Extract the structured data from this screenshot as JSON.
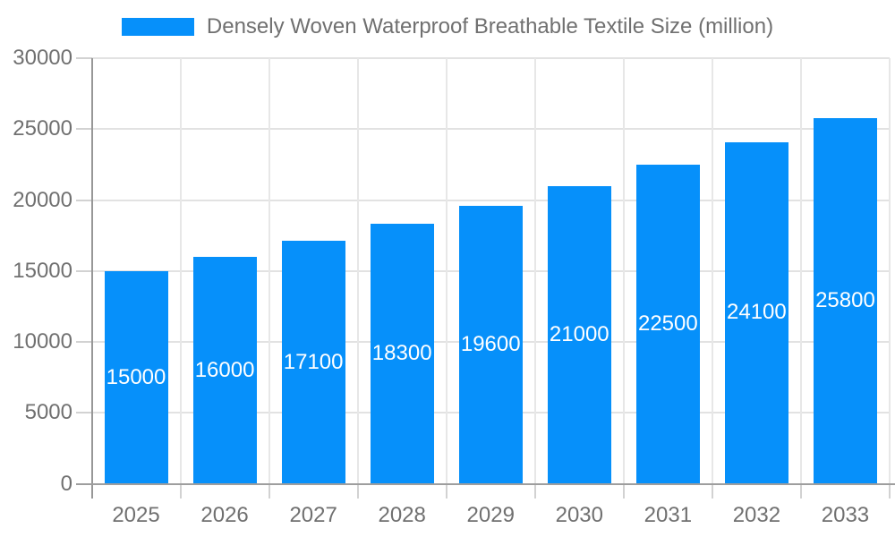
{
  "legend": {
    "label": "Densely Woven Waterproof Breathable Textile Size (million)",
    "swatch_color": "#0690FA"
  },
  "chart_data": {
    "type": "bar",
    "title": "Densely Woven Waterproof Breathable Textile Size (million)",
    "categories": [
      "2025",
      "2026",
      "2027",
      "2028",
      "2029",
      "2030",
      "2031",
      "2032",
      "2033"
    ],
    "values": [
      15000,
      16000,
      17100,
      18300,
      19600,
      21000,
      22500,
      24100,
      25800
    ],
    "series": [
      {
        "name": "Densely Woven Waterproof Breathable Textile Size (million)",
        "values": [
          15000,
          16000,
          17100,
          18300,
          19600,
          21000,
          22500,
          24100,
          25800
        ]
      }
    ],
    "xlabel": "",
    "ylabel": "",
    "ylim": [
      0,
      30000
    ],
    "yticks": [
      0,
      5000,
      10000,
      15000,
      20000,
      25000,
      30000
    ],
    "grid": true,
    "legend_position": "top",
    "bar_color": "#0690FA",
    "value_label_color": "#ffffff",
    "axis_text_color": "#707070",
    "grid_color": "#e2e2e2",
    "axis_line_color": "#9b9b9b"
  }
}
